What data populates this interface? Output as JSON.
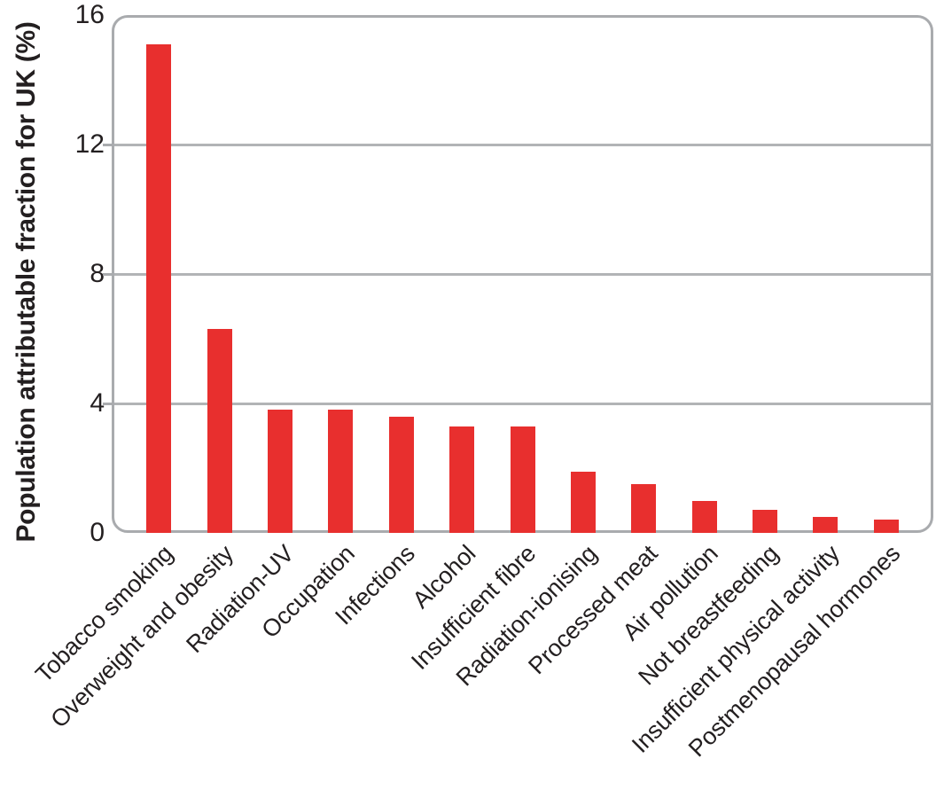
{
  "chart_data": {
    "type": "bar",
    "title": "",
    "xlabel": "",
    "ylabel": "Population attributable fraction for UK (%)",
    "ylim": [
      0,
      16
    ],
    "yticks": [
      0,
      4,
      8,
      12,
      16
    ],
    "gridlines": [
      4,
      8,
      12
    ],
    "grid": true,
    "legend_position": "none",
    "categories": [
      "Tobacco smoking",
      "Overweight and obesity",
      "Radiation-UV",
      "Occupation",
      "Infections",
      "Alcohol",
      "Insufficient fibre",
      "Radiation-ionising",
      "Processed meat",
      "Air pollution",
      "Not breastfeeding",
      "Insufficient physical activity",
      "Postmenopausal hormones"
    ],
    "values": [
      15.1,
      6.3,
      3.8,
      3.8,
      3.6,
      3.3,
      3.3,
      1.9,
      1.5,
      1.0,
      0.7,
      0.5,
      0.4
    ],
    "colors": {
      "bar": "#e82f2e",
      "frame": "#a9abae",
      "grid": "#b2b4b6",
      "text": "#231f20"
    }
  }
}
